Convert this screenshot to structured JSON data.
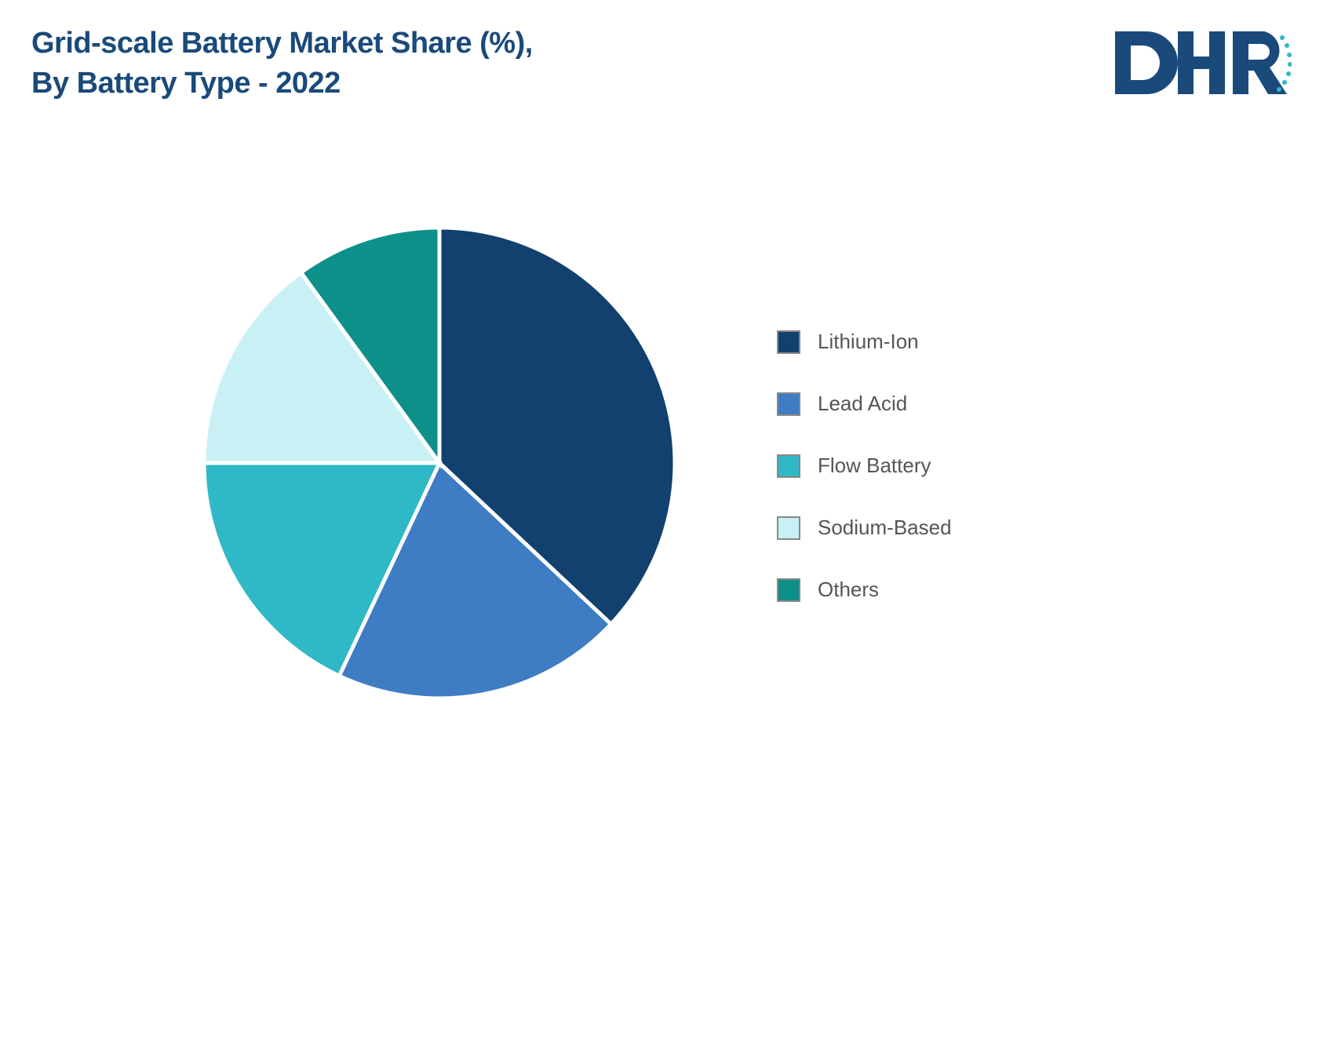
{
  "title_line1": "Grid-scale Battery Market Share (%),",
  "title_line2": "By Battery Type - 2022",
  "title_color": "#1a4a7a",
  "title_fontsize": 38,
  "logo_text": "DHR",
  "logo_primary_color": "#1a4a7a",
  "logo_accent_color": "#2fb8c5",
  "chart": {
    "type": "pie",
    "radius": 300,
    "stroke_color": "#ffffff",
    "stroke_width": 5,
    "background_color": "#ffffff",
    "start_angle_deg": -90,
    "slices": [
      {
        "label": "Lithium-Ion",
        "value": 37,
        "color": "#12406f"
      },
      {
        "label": "Lead Acid",
        "value": 20,
        "color": "#3e7cc4"
      },
      {
        "label": "Flow Battery",
        "value": 18,
        "color": "#2fb8c5"
      },
      {
        "label": "Sodium-Based",
        "value": 15,
        "color": "#c9f1f5"
      },
      {
        "label": "Others",
        "value": 10,
        "color": "#0d8f8a"
      }
    ]
  },
  "legend": {
    "swatch_size": 30,
    "swatch_border_color": "#888888",
    "label_fontsize": 26,
    "label_color": "#555555",
    "gap": 48
  }
}
